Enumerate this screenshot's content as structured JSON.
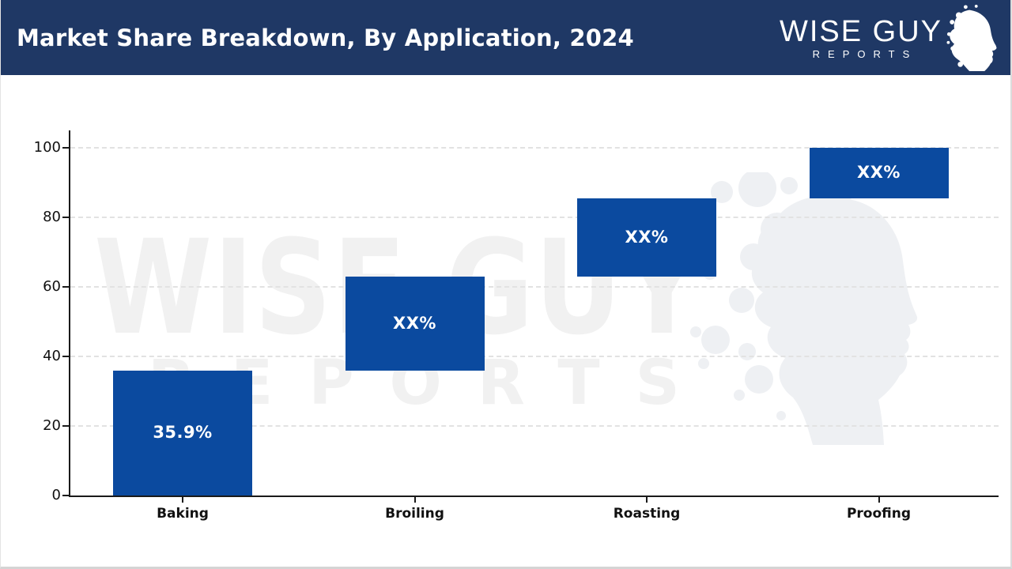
{
  "header": {
    "title": "Market Share Breakdown, By Application, 2024",
    "logo": {
      "line1": "WISE GUY",
      "line2": "REPORTS"
    }
  },
  "watermark": {
    "line1": "WISE GUY",
    "line2": "REPORTS"
  },
  "colors": {
    "header_bg": "#1f3865",
    "bar": "#0b4a9f",
    "bar_label": "#ffffff",
    "axis": "#1a1a1a",
    "grid": "#e2e2e2",
    "watermark": "#f1f1f1",
    "watermark_face": "#eef0f3",
    "title_text": "#ffffff"
  },
  "chart_data": {
    "type": "bar",
    "variant": "waterfall",
    "title": "Market Share Breakdown, By Application, 2024",
    "categories": [
      "Baking",
      "Broiling",
      "Roasting",
      "Proofing"
    ],
    "segments": [
      {
        "category": "Baking",
        "start": 0,
        "end": 35.9,
        "label": "35.9%"
      },
      {
        "category": "Broiling",
        "start": 35.9,
        "end": 62.9,
        "label": "XX%"
      },
      {
        "category": "Roasting",
        "start": 62.9,
        "end": 85.5,
        "label": "XX%"
      },
      {
        "category": "Proofing",
        "start": 85.5,
        "end": 100,
        "label": "XX%"
      }
    ],
    "xlabel": "",
    "ylabel": "",
    "ylim": [
      0,
      100
    ],
    "yticks": [
      0,
      20,
      40,
      60,
      80,
      100
    ],
    "grid": true,
    "legend": null
  }
}
